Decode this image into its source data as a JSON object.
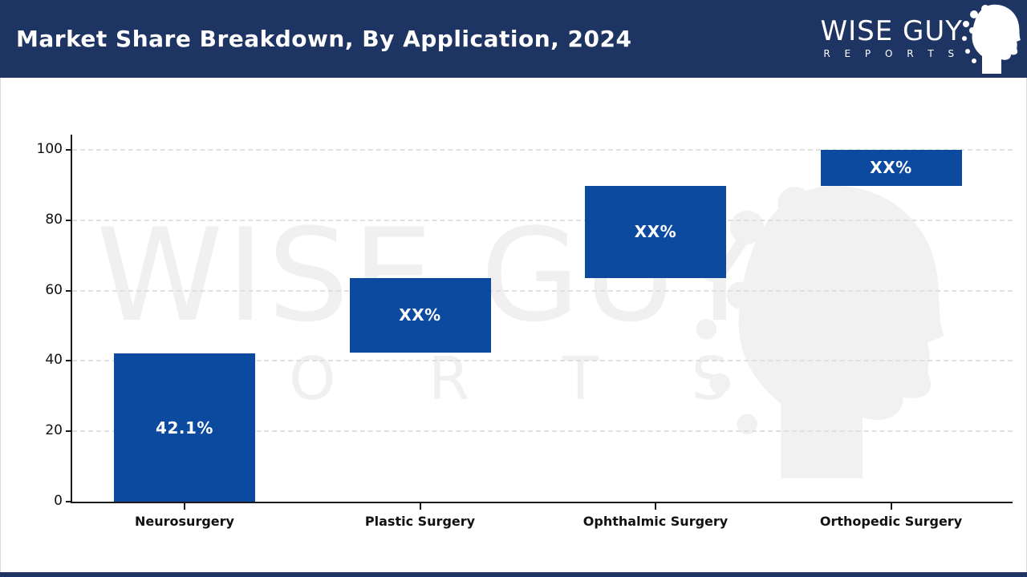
{
  "header": {
    "title": "Market Share Breakdown, By Application, 2024",
    "bg_color": "#1e3462"
  },
  "logo": {
    "line1": "WISE GUY",
    "line2": "R E P O R T S",
    "icon": "dotted-head-profile-icon"
  },
  "watermark": {
    "line1": "WISE GUY",
    "line2": "P O R T S",
    "icon": "dotted-head-profile-watermark"
  },
  "chart_data": {
    "type": "bar",
    "subtype": "waterfall",
    "title": "Market Share Breakdown, By Application, 2024",
    "categories": [
      "Neurosurgery",
      "Plastic Surgery",
      "Ophthalmic Surgery",
      "Orthopedic Surgery"
    ],
    "segments": [
      {
        "category": "Neurosurgery",
        "start": 0,
        "end": 42.1,
        "label": "42.1%"
      },
      {
        "category": "Plastic Surgery",
        "start": 42.4,
        "end": 63.6,
        "label": "XX%"
      },
      {
        "category": "Ophthalmic Surgery",
        "start": 63.6,
        "end": 89.8,
        "label": "XX%"
      },
      {
        "category": "Orthopedic Surgery",
        "start": 89.8,
        "end": 100,
        "label": "XX%"
      }
    ],
    "yticks": [
      0,
      20,
      40,
      60,
      80,
      100
    ],
    "ylim": [
      0,
      100
    ],
    "xlabel": "",
    "ylabel": "",
    "grid": "dashed-horizontal",
    "legend": "none",
    "bar_color": "#0b4a9e",
    "bar_label_color": "#ffffff",
    "axis_color": "#1a1a1a"
  }
}
